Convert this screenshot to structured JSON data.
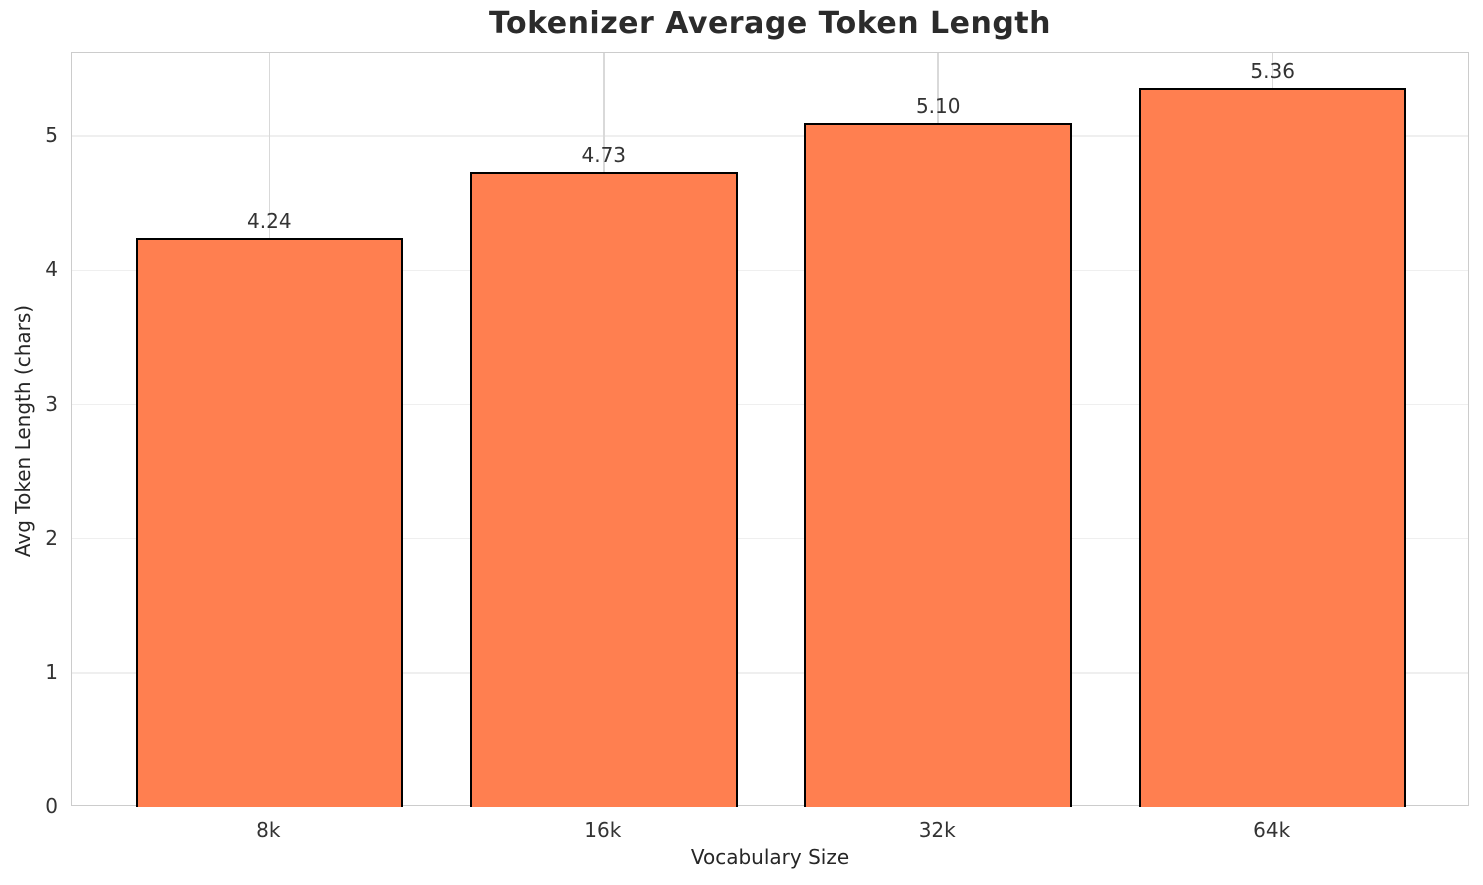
{
  "chart_data": {
    "type": "bar",
    "title": "Tokenizer Average Token Length",
    "xlabel": "Vocabulary Size",
    "ylabel": "Avg Token Length (chars)",
    "categories": [
      "8k",
      "16k",
      "32k",
      "64k"
    ],
    "values": [
      4.24,
      4.73,
      5.1,
      5.36
    ],
    "value_labels": [
      "4.24",
      "4.73",
      "5.10",
      "5.36"
    ],
    "yticks": [
      0,
      1,
      2,
      3,
      4,
      5
    ],
    "ylim": [
      0,
      5.62
    ],
    "bar_width_fraction": 0.8,
    "grid": "horizontal and vertical gridlines, plot border on all sides",
    "legend": "none",
    "colors": {
      "bar_fill": "#FF7F50",
      "bar_edge": "#000000",
      "hgrid": "#efefef",
      "vgrid": "#d9d9d9",
      "spine": "#cccccc",
      "title_text": "#2b2b2b",
      "tick_text": "#333333",
      "axis_label_text": "#262626",
      "background": "#ffffff"
    }
  }
}
